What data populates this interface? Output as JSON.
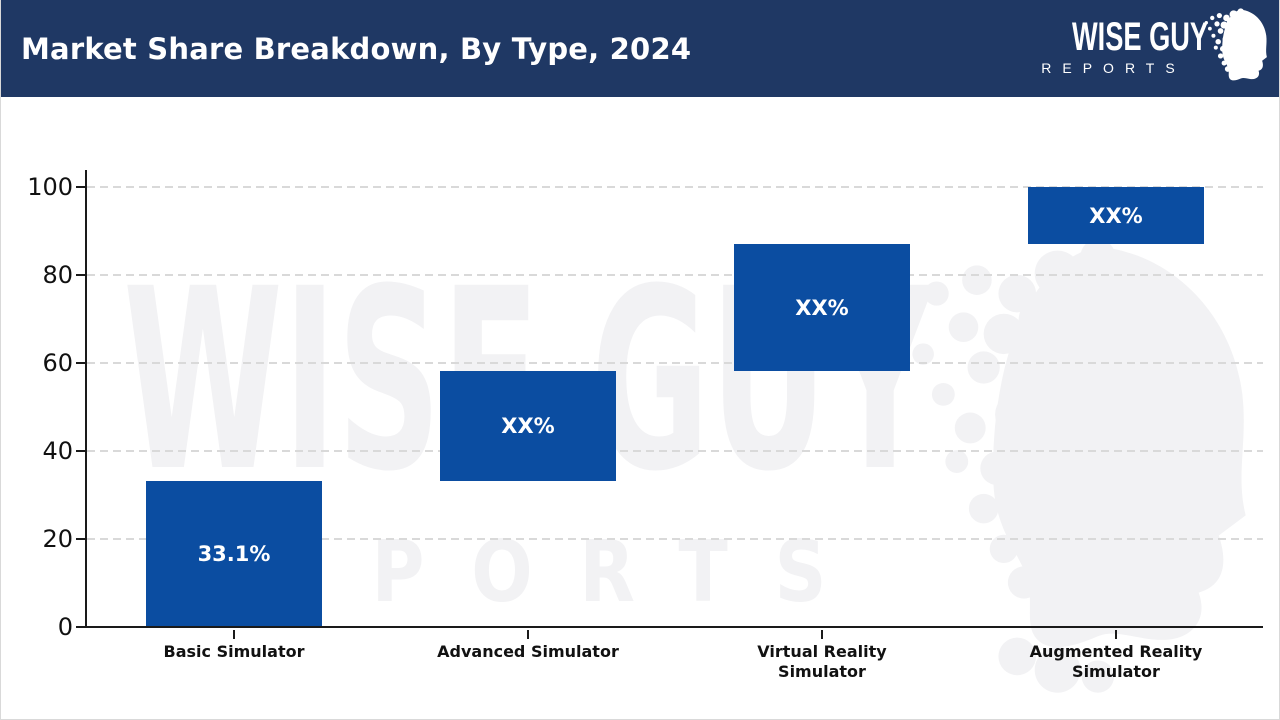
{
  "header": {
    "title": "Market Share Breakdown, By Type, 2024",
    "logo": {
      "wordmark": "WISE GUY",
      "subtitle": "REPORTS"
    }
  },
  "watermark": {
    "wordmark": "WISE GUY",
    "subtitle": "REPORTS"
  },
  "chart_data": {
    "type": "bar",
    "variant": "waterfall",
    "title": "Market Share Breakdown, By Type, 2024",
    "categories": [
      "Basic Simulator",
      "Advanced Simulator",
      "Virtual Reality Simulator",
      "Augmented Reality Simulator"
    ],
    "category_label_lines": [
      [
        "Basic Simulator"
      ],
      [
        "Advanced Simulator"
      ],
      [
        "Virtual Reality",
        "Simulator"
      ],
      [
        "Augmented Reality",
        "Simulator"
      ]
    ],
    "bars": [
      {
        "start": 0,
        "end": 33.1,
        "label": "33.1%"
      },
      {
        "start": 33.1,
        "end": 58.2,
        "label": "XX%"
      },
      {
        "start": 58.2,
        "end": 87.0,
        "label": "XX%"
      },
      {
        "start": 87.0,
        "end": 100.0,
        "label": "XX%"
      }
    ],
    "ylim": [
      0,
      100
    ],
    "yticks": [
      0,
      20,
      40,
      60,
      80,
      100
    ],
    "grid": "horizontal-dashed",
    "legend": "none"
  },
  "colors": {
    "header_bg": "#1f3864",
    "bar": "#0b4da1",
    "grid_line": "#d9d9d9",
    "axis": "#1a1a1a",
    "watermark": "#f2f2f4",
    "title_text": "#ffffff",
    "label_text": "#111111"
  }
}
